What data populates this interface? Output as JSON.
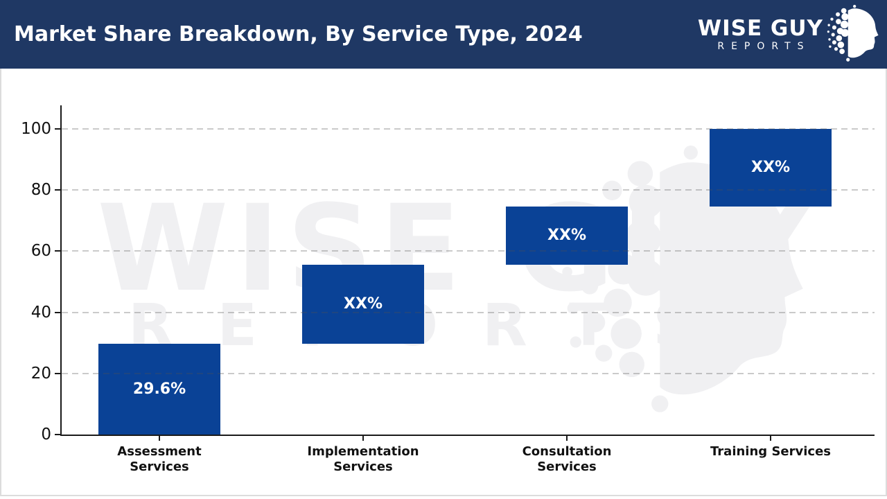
{
  "header": {
    "title": "Market Share Breakdown, By Service Type, 2024",
    "logo": {
      "name_line": "WISE GUY",
      "sub_line": "REPORTS"
    }
  },
  "watermark": {
    "name_line": "WISE GUY",
    "sub_line": "REPORTS"
  },
  "chart_data": {
    "type": "bar",
    "subtype": "waterfall",
    "title": "Market Share Breakdown, By Service Type, 2024",
    "categories": [
      "Assessment\nServices",
      "Implementation\nServices",
      "Consultation\nServices",
      "Training Services"
    ],
    "values": [
      {
        "category": "Assessment Services",
        "start": 0,
        "end": 29.6,
        "label": "29.6%"
      },
      {
        "category": "Implementation Services",
        "start": 29.6,
        "end": 55.5,
        "label": "XX%"
      },
      {
        "category": "Consultation Services",
        "start": 55.5,
        "end": 74.6,
        "label": "XX%"
      },
      {
        "category": "Training Services",
        "start": 74.6,
        "end": 100,
        "label": "XX%"
      }
    ],
    "ylim": [
      0,
      100
    ],
    "yticks": [
      0,
      20,
      40,
      60,
      80,
      100
    ],
    "xlabel": "",
    "ylabel": "",
    "legend": "none",
    "grid": "horizontal-dashed",
    "bar_color": "#0a4296",
    "bar_label_color": "#ffffff"
  },
  "colors": {
    "header_bg": "#1f3864",
    "bar": "#0a4296",
    "axis": "#1a1a1a",
    "watermark": "#f0f0f2",
    "grid_dash": "#c9c9c9",
    "page_border": "#dcdcdc"
  }
}
